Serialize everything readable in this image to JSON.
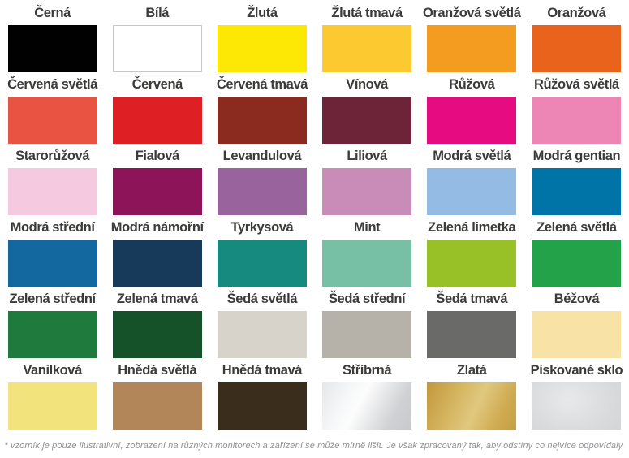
{
  "swatches": [
    {
      "label": "Černá",
      "hex": "#010101",
      "css": "#010101"
    },
    {
      "label": "Bílá",
      "hex": "#FFFFFF",
      "css": "#ffffff"
    },
    {
      "label": "Žlutá",
      "hex": "#FDE704",
      "css": "#fde704"
    },
    {
      "label": "Žlutá tmavá",
      "hex": "#FCC930",
      "css": "#fcc930"
    },
    {
      "label": "Oranžová světlá",
      "hex": "#F49C20",
      "css": "#f49c20"
    },
    {
      "label": "Oranžová",
      "hex": "#E9631D",
      "css": "#e9631d"
    },
    {
      "label": "Červená světlá",
      "hex": "#E85441",
      "css": "#e85441"
    },
    {
      "label": "Červená",
      "hex": "#DE1F24",
      "css": "#de1f24"
    },
    {
      "label": "Červená tmavá",
      "hex": "#8B2A1E",
      "css": "#8b2a1e"
    },
    {
      "label": "Vínová",
      "hex": "#6E2438",
      "css": "#6e2438"
    },
    {
      "label": "Růžová",
      "hex": "#E60B80",
      "css": "#e60b80"
    },
    {
      "label": "Růžová světlá",
      "hex": "#EE86B5",
      "css": "#ee86b5"
    },
    {
      "label": "Starorůžová",
      "hex": "#F5C9E0",
      "css": "#f5c9e0"
    },
    {
      "label": "Fialová",
      "hex": "#8D1459",
      "css": "#8d1459"
    },
    {
      "label": "Levandulová",
      "hex": "#99639E",
      "css": "#99639e"
    },
    {
      "label": "Liliová",
      "hex": "#C98CB8",
      "css": "#c98cb8"
    },
    {
      "label": "Modrá světlá",
      "hex": "#93BBE4",
      "css": "#93bbe4"
    },
    {
      "label": "Modrá gentian",
      "hex": "#0074A6",
      "css": "#0074a6"
    },
    {
      "label": "Modrá střední",
      "hex": "#12689F",
      "css": "#12689f"
    },
    {
      "label": "Modrá námořní",
      "hex": "#173A5B",
      "css": "#173a5b"
    },
    {
      "label": "Tyrkysová",
      "hex": "#178A80",
      "css": "#178a80"
    },
    {
      "label": "Mint",
      "hex": "#77BFA5",
      "css": "#77bfa5"
    },
    {
      "label": "Zelená limetka",
      "hex": "#97C127",
      "css": "#97c127"
    },
    {
      "label": "Zelená světlá",
      "hex": "#23A24A",
      "css": "#23a24a"
    },
    {
      "label": "Zelená střední",
      "hex": "#1E7B3D",
      "css": "#1e7b3d"
    },
    {
      "label": "Zelená tmavá",
      "hex": "#155229",
      "css": "#155229"
    },
    {
      "label": "Šedá světlá",
      "hex": "#D7D3CA",
      "css": "#d7d3ca"
    },
    {
      "label": "Šedá střední",
      "hex": "#B6B2AA",
      "css": "#b6b2aa"
    },
    {
      "label": "Šedá tmavá",
      "hex": "#6A6A69",
      "css": "#6a6a69"
    },
    {
      "label": "Béžová",
      "hex": "#F8E2A5",
      "css": "#f8e2a5"
    },
    {
      "label": "Vanilková",
      "hex": "#F3E37D",
      "css": "#f3e37d"
    },
    {
      "label": "Hnědá světlá",
      "hex": "#B28658",
      "css": "#b28658"
    },
    {
      "label": "Hnědá tmavá",
      "hex": "#3A2D1B",
      "css": "#3a2d1b"
    },
    {
      "label": "Stříbrná",
      "hex": "#D9DBDD",
      "css": "linear-gradient(118deg, #e6e7e9 0%, #f6f7f8 28%, #fdfdfd 42%, #cfd1d4 78%, #c7c9cc 100%)"
    },
    {
      "label": "Zlatá",
      "hex": "#D2AF56",
      "css": "linear-gradient(115deg, #c2973b 0%, #d4b35e 30%, #e0c87e 55%, #d0ab52 80%, #c69d45 100%)"
    },
    {
      "label": "Pískované sklo",
      "hex": "#D8DADC",
      "css": "radial-gradient(ellipse 90% 130% at 42% 38%, #e7e9ea 0%, #d9dbdd 50%, #ced0d3 100%)"
    }
  ],
  "footer": {
    "note": "* vzorník je pouze ilustrativní, zobrazení na různých monitorech a zařízení se může mírně lišit. Je však zpracovaný tak, aby odstíny co nejvíce odpovídaly."
  },
  "ui_colors": {
    "label_text": "#3B3B3A",
    "footer_text": "#8F9194",
    "white_swatch_border": "#C6C6C6"
  },
  "chart_data": {
    "type": "table",
    "title": "",
    "columns": [
      "name",
      "color_hex"
    ],
    "rows": [
      [
        "Černá",
        "#010101"
      ],
      [
        "Bílá",
        "#FFFFFF"
      ],
      [
        "Žlutá",
        "#FDE704"
      ],
      [
        "Žlutá tmavá",
        "#FCC930"
      ],
      [
        "Oranžová světlá",
        "#F49C20"
      ],
      [
        "Oranžová",
        "#E9631D"
      ],
      [
        "Červená světlá",
        "#E85441"
      ],
      [
        "Červená",
        "#DE1F24"
      ],
      [
        "Červená tmavá",
        "#8B2A1E"
      ],
      [
        "Vínová",
        "#6E2438"
      ],
      [
        "Růžová",
        "#E60B80"
      ],
      [
        "Růžová světlá",
        "#EE86B5"
      ],
      [
        "Starorůžová",
        "#F5C9E0"
      ],
      [
        "Fialová",
        "#8D1459"
      ],
      [
        "Levandulová",
        "#99639E"
      ],
      [
        "Liliová",
        "#C98CB8"
      ],
      [
        "Modrá světlá",
        "#93BBE4"
      ],
      [
        "Modrá gentian",
        "#0074A6"
      ],
      [
        "Modrá střední",
        "#12689F"
      ],
      [
        "Modrá námořní",
        "#173A5B"
      ],
      [
        "Tyrkysová",
        "#178A80"
      ],
      [
        "Mint",
        "#77BFA5"
      ],
      [
        "Zelená limetka",
        "#97C127"
      ],
      [
        "Zelená světlá",
        "#23A24A"
      ],
      [
        "Zelená střední",
        "#1E7B3D"
      ],
      [
        "Zelená tmavá",
        "#155229"
      ],
      [
        "Šedá světlá",
        "#D7D3CA"
      ],
      [
        "Šedá střední",
        "#B6B2AA"
      ],
      [
        "Šedá tmavá",
        "#6A6A69"
      ],
      [
        "Béžová",
        "#F8E2A5"
      ],
      [
        "Vanilková",
        "#F3E37D"
      ],
      [
        "Hnědá světlá",
        "#B28658"
      ],
      [
        "Hnědá tmavá",
        "#3A2D1B"
      ],
      [
        "Stříbrná",
        "#D9DBDD"
      ],
      [
        "Zlatá",
        "#D2AF56"
      ],
      [
        "Pískované sklo",
        "#D8DADC"
      ]
    ]
  }
}
